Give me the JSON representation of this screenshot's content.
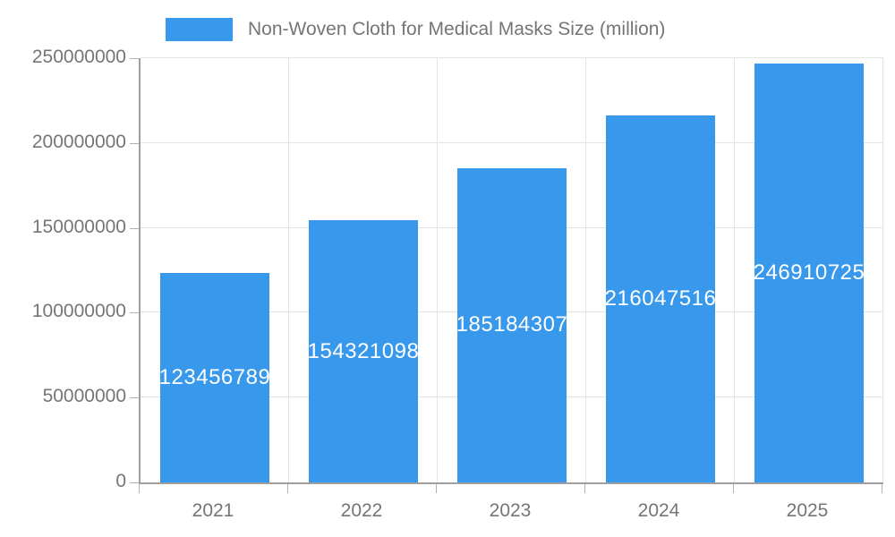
{
  "chart_data": {
    "type": "bar",
    "title": "Non-Woven Cloth for Medical Masks Size (million)",
    "legend_position": "top",
    "categories": [
      "2021",
      "2022",
      "2023",
      "2024",
      "2025"
    ],
    "series": [
      {
        "name": "Non-Woven Cloth for Medical Masks Size (million)",
        "values": [
          123456789,
          154321098,
          185184307,
          216047516,
          246910725
        ]
      }
    ],
    "xlabel": "",
    "ylabel": "",
    "ylim": [
      0,
      250000000
    ],
    "ytick_step": 50000000,
    "ytick_labels": [
      "0",
      "50000000",
      "100000000",
      "150000000",
      "200000000",
      "250000000"
    ],
    "grid": true,
    "data_labels": [
      "123456789",
      "154321098",
      "185184307",
      "216047516",
      "246910725"
    ],
    "colors": {
      "bar": "#3898ec",
      "bar_label": "#ffffff",
      "axis_line": "#9e9e9e",
      "tick_line": "#b0b0b0",
      "gridline": "#e4e4e4",
      "axis_text": "#757575",
      "background": "#ffffff"
    }
  }
}
